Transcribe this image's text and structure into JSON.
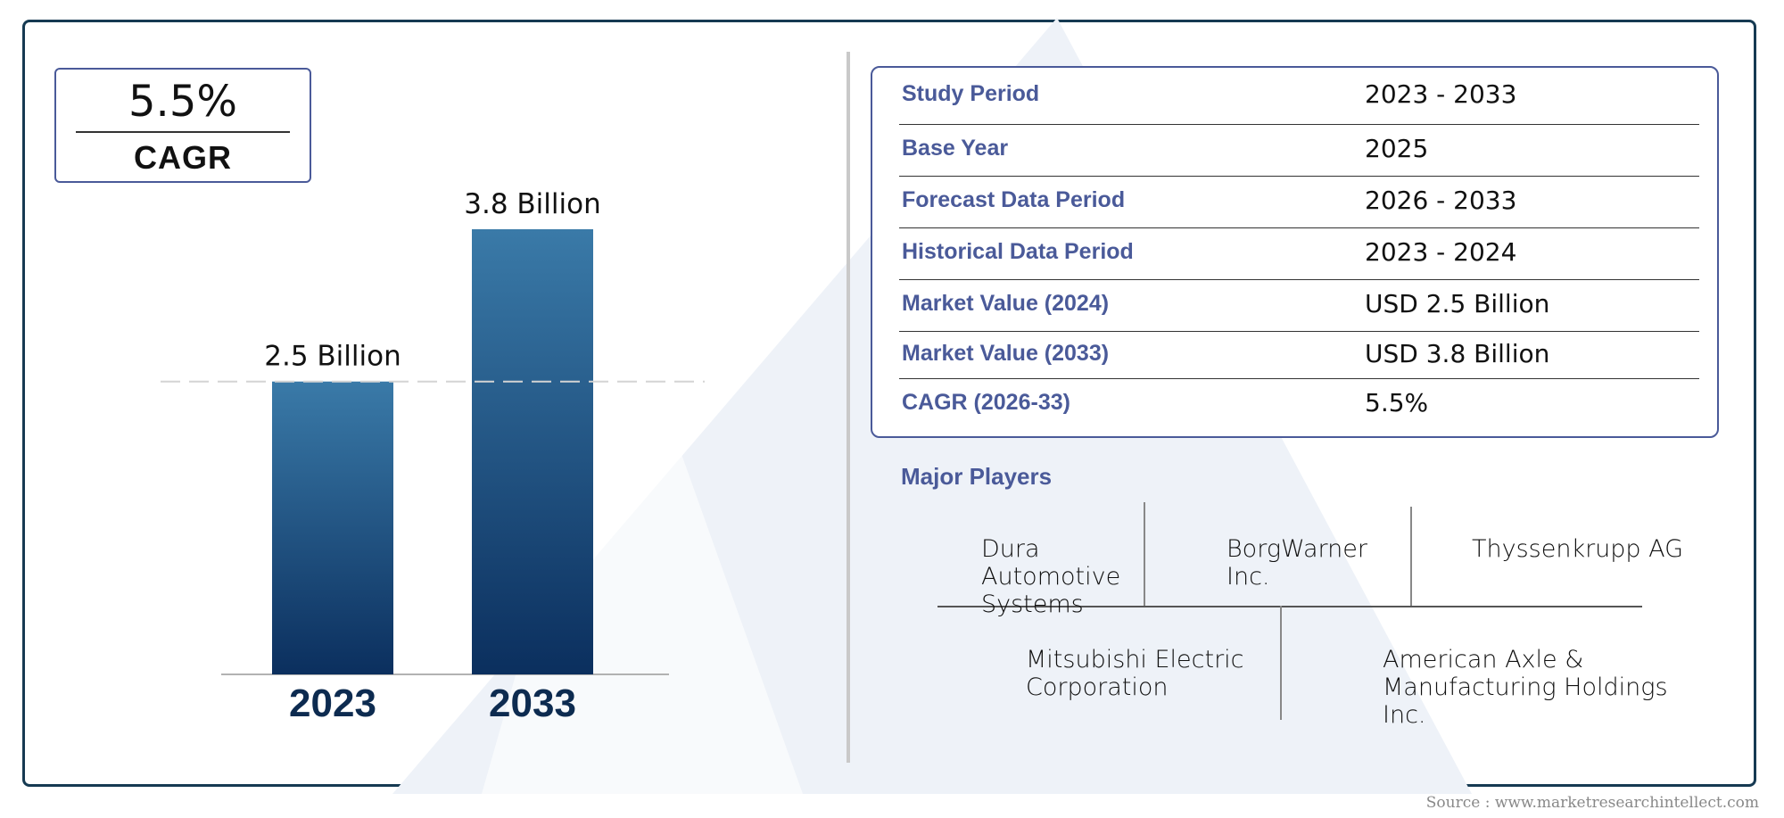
{
  "cagr_card": {
    "value": "5.5%",
    "label": "CAGR"
  },
  "chart_data": {
    "type": "bar",
    "categories": [
      "2023",
      "2033"
    ],
    "values": [
      2.5,
      3.8
    ],
    "data_labels": [
      "2.5 Billion",
      "3.8 Billion"
    ],
    "unit": "Billion",
    "ylim": [
      0,
      3.8
    ],
    "grid": false,
    "reference_line_at": 2.5,
    "colors": {
      "bar_top": "#3a7aa8",
      "bar_bottom": "#0b2f5e",
      "category_label": "#0d2b50"
    }
  },
  "table": {
    "rows": [
      {
        "label": "Study Period",
        "value": "2023 - 2033"
      },
      {
        "label": "Base Year",
        "value": "2025"
      },
      {
        "label": "Forecast Data Period",
        "value": "2026 - 2033"
      },
      {
        "label": "Historical Data Period",
        "value": "2023 - 2024"
      },
      {
        "label": "Market Value (2024)",
        "value": "USD 2.5 Billion"
      },
      {
        "label": "Market Value (2033)",
        "value": "USD 3.8 Billion"
      },
      {
        "label": "CAGR (2026-33)",
        "value": "5.5%"
      }
    ]
  },
  "players": {
    "title": "Major Players",
    "list": [
      "Dura\nAutomotive\nSystems",
      "BorgWarner\nInc.",
      "Thyssenkrupp AG",
      "Mitsubishi Electric\nCorporation",
      "American Axle &\nManufacturing Holdings\nInc."
    ]
  },
  "source": "Source : www.marketresearchintellect.com",
  "colors": {
    "accent": "#4a5a99",
    "frame": "#163a52"
  }
}
